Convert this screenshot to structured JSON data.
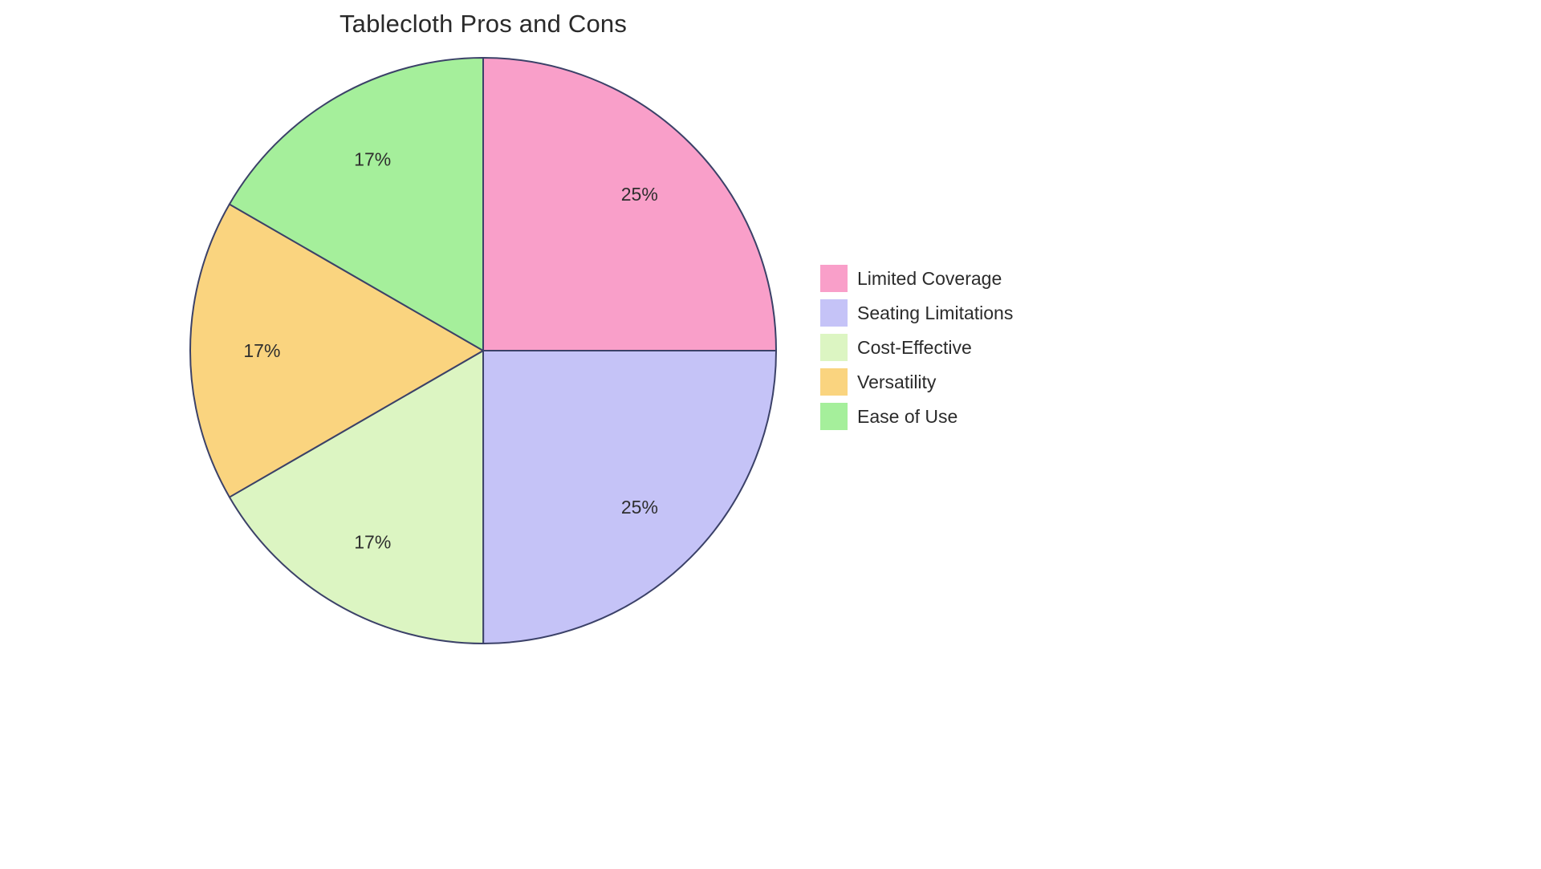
{
  "title": "Tablecloth Pros and Cons",
  "chart_data": {
    "type": "pie",
    "title": "Tablecloth Pros and Cons",
    "labels": [
      "Limited Coverage",
      "Seating Limitations",
      "Cost-Effective",
      "Versatility",
      "Ease of Use"
    ],
    "values": [
      25,
      25,
      16.67,
      16.67,
      16.67
    ],
    "display_percents": [
      "25%",
      "25%",
      "17%",
      "17%",
      "17%"
    ],
    "colors": [
      "#F99FC9",
      "#C5C3F7",
      "#DCF5C2",
      "#FAD47F",
      "#A5EF9B"
    ],
    "stroke_color": "#3B4168",
    "stroke_width": 2,
    "label_color": "#2e2e2e",
    "start_angle": "top",
    "direction": "clockwise",
    "legend_position": "right"
  }
}
